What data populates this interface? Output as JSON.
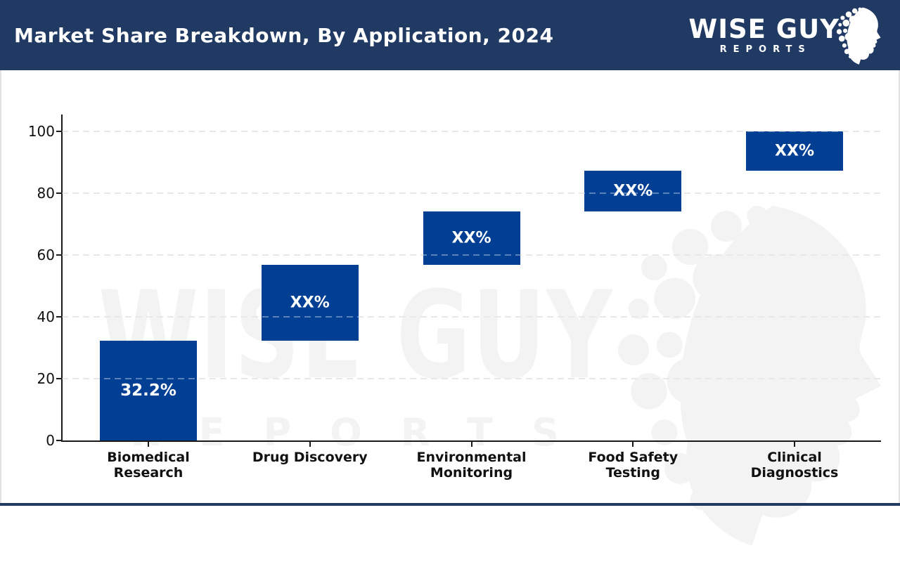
{
  "header": {
    "title": "Market Share Breakdown, By Application, 2024",
    "brand_line1": "WISE GUY",
    "brand_line2": "REPORTS"
  },
  "watermark": {
    "line1": "WISE GUY",
    "line2": "REPORTS"
  },
  "colors": {
    "header_bg": "#203a64",
    "bar": "#003f94",
    "axis": "#1a1a1a",
    "gridline": "#dcdcdc",
    "watermark": "#f3f3f3",
    "bar_value_text": "#ffffff",
    "tick_text": "#111111"
  },
  "chart_data": {
    "type": "bar",
    "subtype": "waterfall",
    "title": "Market Share Breakdown, By Application, 2024",
    "xlabel": "",
    "ylabel": "",
    "ylim": [
      0,
      105
    ],
    "y_ticks": [
      0,
      20,
      40,
      60,
      80,
      100
    ],
    "grid": "horizontal-dashed",
    "legend": "none",
    "categories": [
      "Biomedical Research",
      "Drug Discovery",
      "Environmental Monitoring",
      "Food Safety Testing",
      "Clinical Diagnostics"
    ],
    "category_lines": [
      [
        "Biomedical",
        "Research"
      ],
      [
        "Drug Discovery"
      ],
      [
        "Environmental",
        "Monitoring"
      ],
      [
        "Food Safety",
        "Testing"
      ],
      [
        "Clinical",
        "Diagnostics"
      ]
    ],
    "segments": [
      {
        "category": "Biomedical Research",
        "start": 0,
        "end": 32.2,
        "value": 32.2,
        "value_label": "32.2%"
      },
      {
        "category": "Drug Discovery",
        "start": 32.2,
        "end": 56.8,
        "value": 24.6,
        "value_label": "XX%"
      },
      {
        "category": "Environmental Monitoring",
        "start": 56.8,
        "end": 74.0,
        "value": 17.2,
        "value_label": "XX%"
      },
      {
        "category": "Food Safety Testing",
        "start": 74.0,
        "end": 87.3,
        "value": 13.3,
        "value_label": "XX%"
      },
      {
        "category": "Clinical Diagnostics",
        "start": 87.3,
        "end": 100,
        "value": 12.7,
        "value_label": "XX%"
      }
    ]
  }
}
